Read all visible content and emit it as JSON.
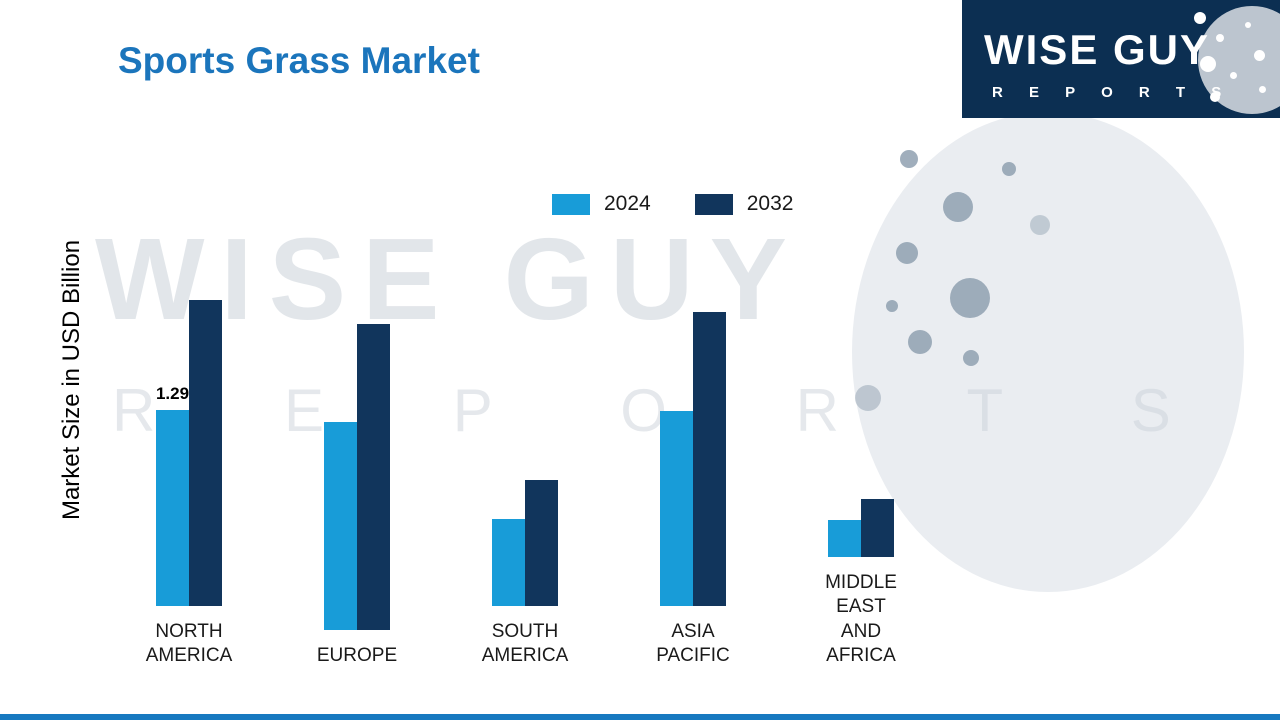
{
  "page": {
    "title": "Sports Grass Market"
  },
  "logo": {
    "name": "WISE GUY",
    "tagline": "R E P O R T S"
  },
  "watermark": {
    "line1": "WISE GUY",
    "line2": "R E P O R T S"
  },
  "colors": {
    "title": "#1b75bc",
    "bar_2024": "#189cd8",
    "bar_2032": "#11355c",
    "logo_bg": "#0c2f52",
    "bottom_strip": "#1779c0"
  },
  "chart_data": {
    "type": "bar",
    "title": "Sports Grass Market",
    "ylabel": "Market Size in USD Billion",
    "xlabel": "",
    "categories": [
      "NORTH AMERICA",
      "EUROPE",
      "SOUTH AMERICA",
      "ASIA PACIFIC",
      "MIDDLE EAST AND AFRICA"
    ],
    "series": [
      {
        "name": "2024",
        "color": "#189cd8",
        "values": [
          1.29,
          1.37,
          0.57,
          1.28,
          0.24
        ]
      },
      {
        "name": "2032",
        "color": "#11355c",
        "values": [
          2.01,
          2.01,
          0.83,
          1.93,
          0.38
        ]
      }
    ],
    "point_label": {
      "series": "2024",
      "category": "NORTH AMERICA",
      "text": "1.29"
    },
    "ylim": [
      0,
      2.15
    ],
    "grid": false,
    "legend_position": "top-center"
  }
}
